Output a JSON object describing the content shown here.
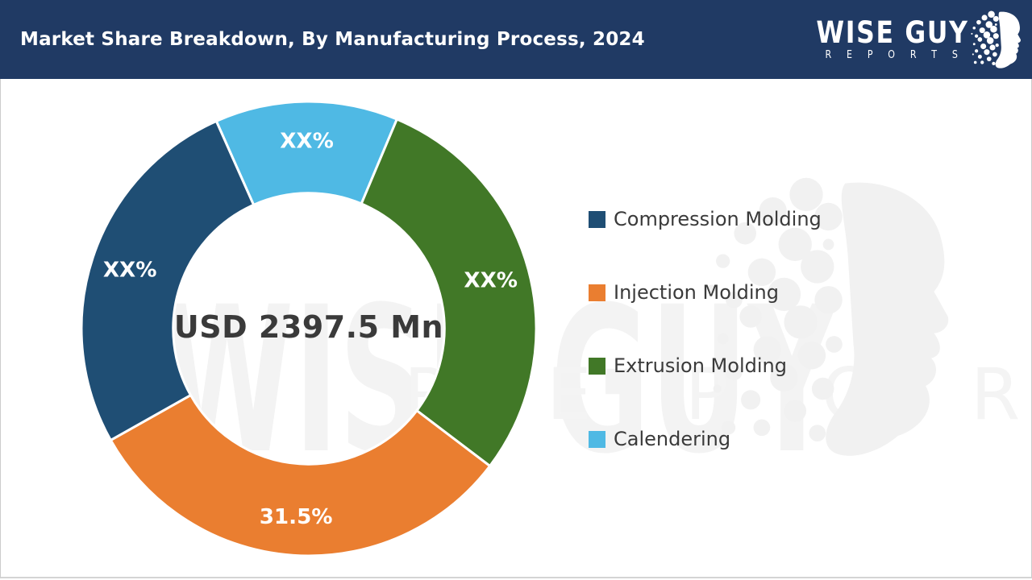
{
  "header": {
    "title": "Market Share Breakdown, By Manufacturing Process, 2024",
    "background": "#203a64",
    "logo": {
      "line1": "WISE GUY",
      "line2": "R E P O R T S"
    }
  },
  "chart_data": {
    "type": "pie",
    "subtype": "donut",
    "title": "Market Share Breakdown, By Manufacturing Process, 2024",
    "center_label": "USD 2397.5 Mn",
    "legend_position": "right",
    "start_angle_deg": 114,
    "direction": "clockwise",
    "inner_radius_ratio": 0.595,
    "segments": [
      {
        "name": "Compression Molding",
        "color": "#1f4e74",
        "value_pct": 26.5,
        "slice_label": "XX%"
      },
      {
        "name": "Injection Molding",
        "color": "#ea7e30",
        "value_pct": 31.5,
        "slice_label": "31.5%"
      },
      {
        "name": "Extrusion Molding",
        "color": "#417827",
        "value_pct": 29.0,
        "slice_label": "XX%"
      },
      {
        "name": "Calendering",
        "color": "#4fb9e4",
        "value_pct": 13.0,
        "slice_label": "XX%"
      }
    ]
  },
  "watermark": {
    "line1": "WISE GUY",
    "line2": "R E P O R T S"
  }
}
